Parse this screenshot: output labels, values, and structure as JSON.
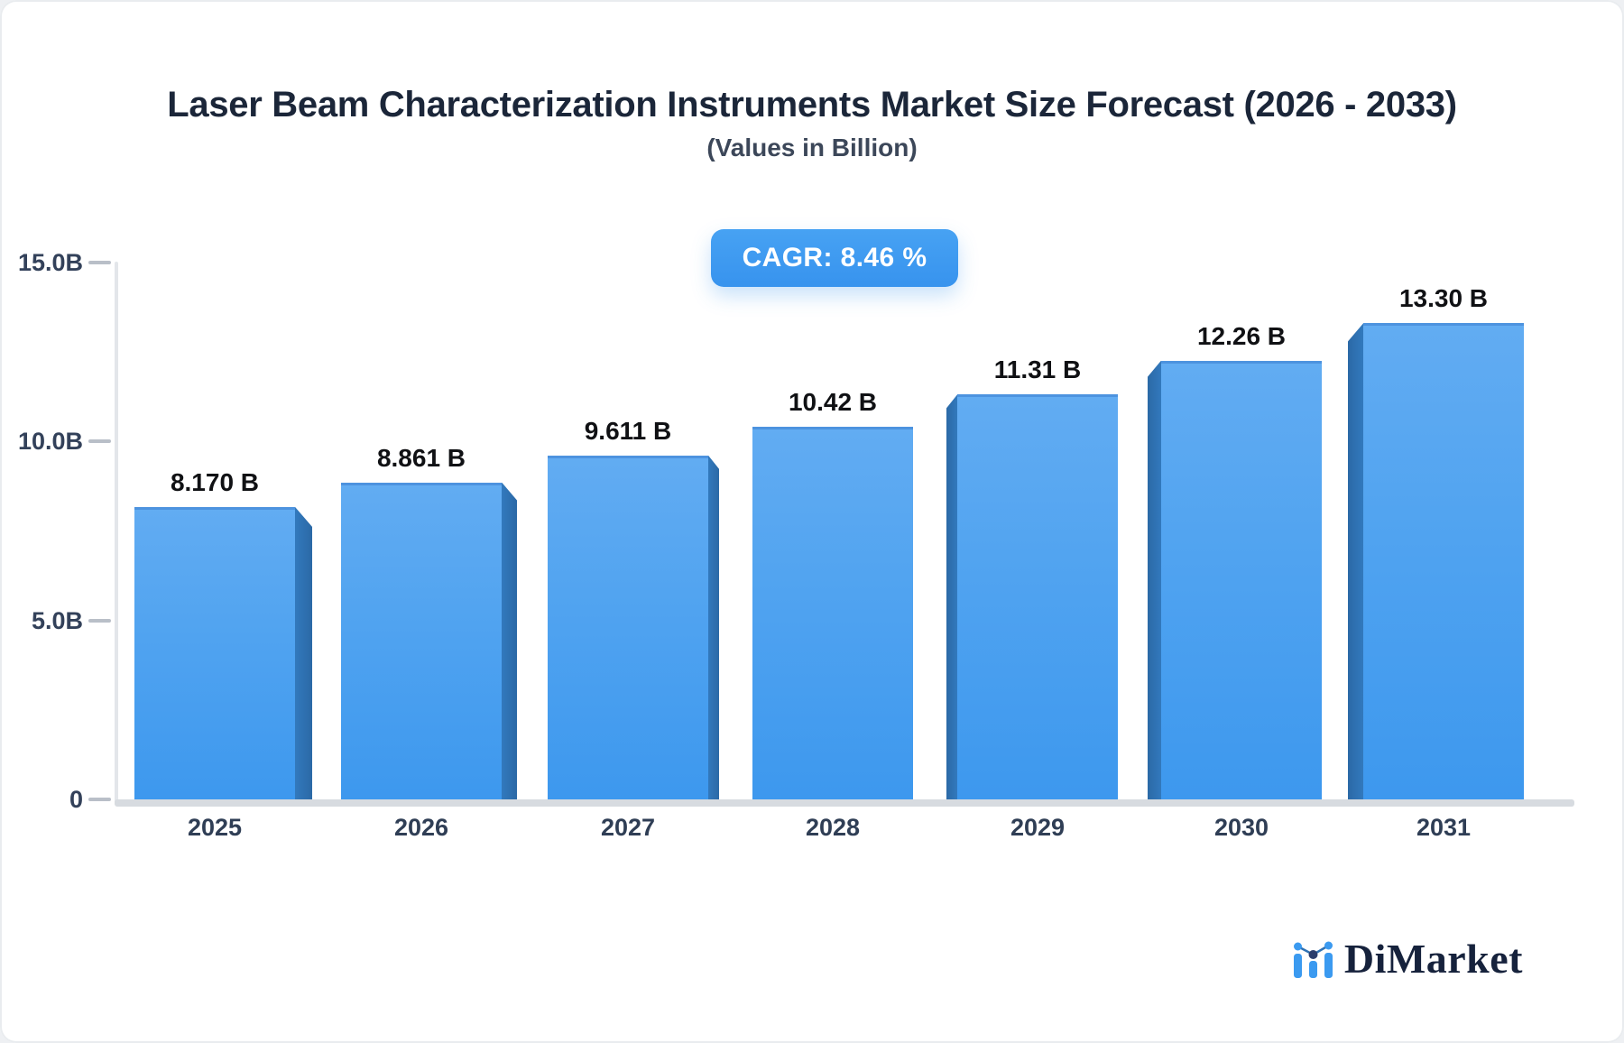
{
  "badge": {
    "label": "CAGR: 8.46 %"
  },
  "footer": {
    "brand": "DiMarket",
    "logo_icon": "bar-chart-logo-icon"
  },
  "colors": {
    "accent_blue": "#3B9AF0",
    "bar_top": "#62ACF2",
    "bar_bottom": "#3D98EE",
    "bar_side": "#2F72B2",
    "axis_line": "#D7DBE0",
    "tick": "#B9BFC8",
    "title_text": "#1B2639",
    "axis_text": "#33415A",
    "value_text": "#101114",
    "badge_bg": "#3B9AF0",
    "badge_text": "#FFFFFF",
    "brand_text": "#16223C"
  },
  "chart_data": {
    "type": "bar",
    "title": "Laser Beam Characterization Instruments Market Size Forecast (2026 - 2033)",
    "subtitle": "(Values in Billion)",
    "categories": [
      "2025",
      "2026",
      "2027",
      "2028",
      "2029",
      "2030",
      "2031"
    ],
    "values": [
      8.17,
      8.861,
      9.611,
      10.42,
      11.31,
      12.26,
      13.3
    ],
    "value_labels": [
      "8.170 B",
      "8.861 B",
      "9.611 B",
      "10.42 B",
      "11.31 B",
      "12.26 B",
      "13.30 B"
    ],
    "ylim": [
      0,
      15
    ],
    "yticks": [
      {
        "label": "15.0B",
        "value": 15
      },
      {
        "label": "10.0B",
        "value": 10
      },
      {
        "label": "5.0B",
        "value": 5
      },
      {
        "label": "0",
        "value": 0
      }
    ],
    "grid": false,
    "legend": false,
    "annotation": "CAGR: 8.46 %"
  }
}
